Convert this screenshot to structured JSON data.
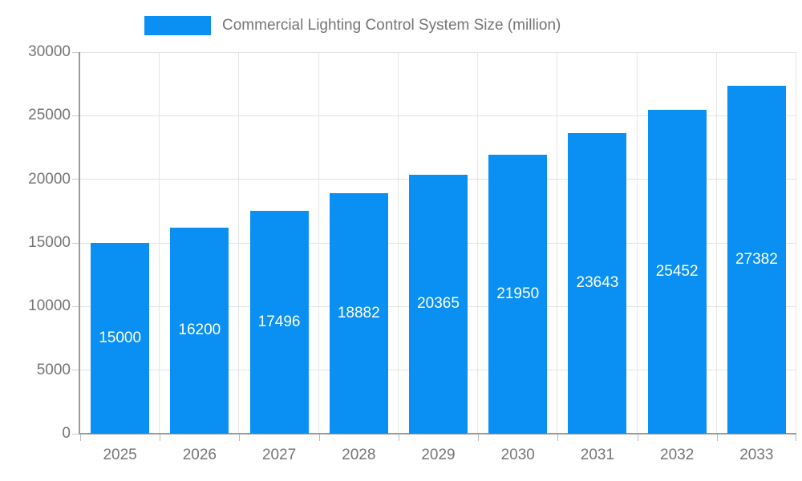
{
  "legend": {
    "label": "Commercial Lighting Control System Size (million)"
  },
  "chart_data": {
    "type": "bar",
    "title": "Commercial Lighting Control System Size (million)",
    "categories": [
      "2025",
      "2026",
      "2027",
      "2028",
      "2029",
      "2030",
      "2031",
      "2032",
      "2033"
    ],
    "series": [
      {
        "name": "Commercial Lighting Control System Size (million)",
        "color": "#0990F2",
        "values": [
          15000,
          16200,
          17496,
          18882,
          20365,
          21950,
          23643,
          25452,
          27382
        ]
      }
    ],
    "xlabel": "",
    "ylabel": "",
    "ylim": [
      0,
      30000
    ],
    "ytick_step": 5000,
    "yticks": [
      0,
      5000,
      10000,
      15000,
      20000,
      25000,
      30000
    ],
    "grid": true,
    "legend_position": "top",
    "value_labels": "inside-center",
    "value_label_color": "#ffffff",
    "axis_text_color": "#757575",
    "gridline_color": "#e3e3e3",
    "axis_line_color": "#9b9b9b"
  }
}
